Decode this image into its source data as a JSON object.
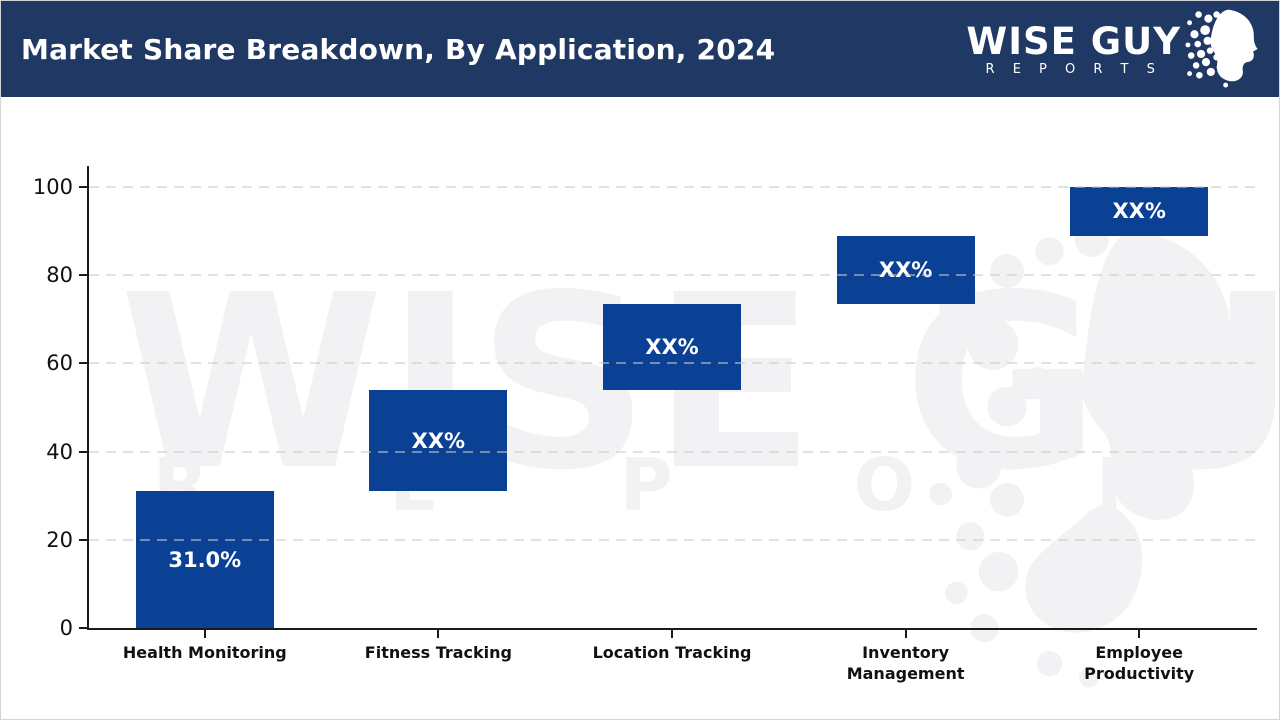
{
  "header": {
    "title": "Market Share Breakdown, By Application, 2024",
    "background_color": "#1f3864",
    "logo": {
      "title": "WISE GUY",
      "subtitle": "R E P O R T S"
    }
  },
  "watermark": {
    "line1": "WISE GUY",
    "line2": "R E P O R T S"
  },
  "chart_data": {
    "type": "bar",
    "subtype": "floating-segment-waterfall",
    "title": "Market Share Breakdown, By Application, 2024",
    "xlabel": "",
    "ylabel": "",
    "ylim": [
      0,
      107
    ],
    "y_ticks": [
      0,
      20,
      40,
      60,
      80,
      100
    ],
    "grid": true,
    "legend": null,
    "bar_color": "#0a4194",
    "value_label_color": "#ffffff",
    "categories": [
      "Health Monitoring",
      "Fitness Tracking",
      "Location Tracking",
      "Inventory Management",
      "Employee Productivity"
    ],
    "segments": [
      {
        "category": "Health Monitoring",
        "label_lines": [
          "Health Monitoring"
        ],
        "start": 0,
        "end": 31,
        "value_label": "31.0%",
        "value": 31.0
      },
      {
        "category": "Fitness Tracking",
        "label_lines": [
          "Fitness Tracking"
        ],
        "start": 31,
        "end": 54,
        "value_label": "XX%",
        "value": null
      },
      {
        "category": "Location Tracking",
        "label_lines": [
          "Location Tracking"
        ],
        "start": 54,
        "end": 73.5,
        "value_label": "XX%",
        "value": null
      },
      {
        "category": "Inventory Management",
        "label_lines": [
          "Inventory",
          "Management"
        ],
        "start": 73.5,
        "end": 89,
        "value_label": "XX%",
        "value": null
      },
      {
        "category": "Employee Productivity",
        "label_lines": [
          "Employee",
          "Productivity"
        ],
        "start": 89,
        "end": 100,
        "value_label": "XX%",
        "value": null
      }
    ]
  }
}
